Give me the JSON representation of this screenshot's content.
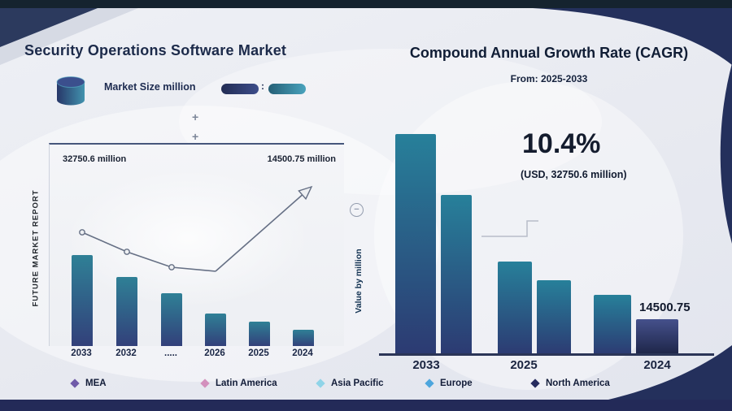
{
  "left_section": {
    "title": "Security Operations Software  Market",
    "legend_label": "Market Size million",
    "max_annotation": "32750.6 million",
    "min_annotation": "14500.75 million",
    "watermark": "FUTURE MARKET REPORT"
  },
  "right_section": {
    "title": "Compound Annual Growth Rate (CAGR)",
    "subtitle": "From: 2025-2033",
    "cagr_value": "10.4%",
    "cagr_detail": "(USD, 32750.6 million)",
    "value_axis_label": "Value by million",
    "end_value_annotation": "14500.75"
  },
  "decorations": {
    "plus_top": "+",
    "plus_bottom": "+",
    "minus": "−",
    "colon": ":"
  },
  "legend": {
    "items": [
      {
        "label": "MEA",
        "color": "#6f5aa8"
      },
      {
        "label": "Latin America",
        "color": "#d390bd"
      },
      {
        "label": "Asia Pacific",
        "color": "#8fd4e8"
      },
      {
        "label": "Europe",
        "color": "#4da6dd"
      },
      {
        "label": "North America",
        "color": "#262b5e"
      }
    ]
  },
  "colors": {
    "bar_gradient_top": "#2f8096",
    "bar_gradient_bottom": "#32407a",
    "accent_navy": "#24305c",
    "title_text": "#16233f"
  },
  "chart_data": [
    {
      "type": "bar",
      "title": "Security Operations Software Market",
      "ylabel": "Market Size million",
      "categories": [
        "2033",
        "2032",
        ".....",
        "2026",
        "2025",
        "2024"
      ],
      "values": [
        32750.6,
        27500,
        23500,
        18500,
        16500,
        14500.75
      ],
      "annotations": {
        "max": "32750.6 million",
        "min": "14500.75 million"
      },
      "trendline": "descending markers over 2033-2026 with arrow rising toward max value",
      "grid": false,
      "legend_position": "none"
    },
    {
      "type": "bar",
      "title": "Compound Annual Growth Rate (CAGR)",
      "subtitle": "From: 2025-2033",
      "cagr": "10.4%",
      "cagr_detail": "(USD, 32750.6 million)",
      "categories": [
        "2033",
        "2025",
        "2024"
      ],
      "series": [
        {
          "name": "market-size-high",
          "values": [
            32750.6,
            13900,
            8900
          ]
        },
        {
          "name": "market-size-low",
          "values": [
            23700,
            11100,
            5300
          ]
        }
      ],
      "ylabel": "Value by million",
      "ylim": [
        0,
        32750.6
      ],
      "annotation": "14500.75",
      "grid": false
    }
  ]
}
